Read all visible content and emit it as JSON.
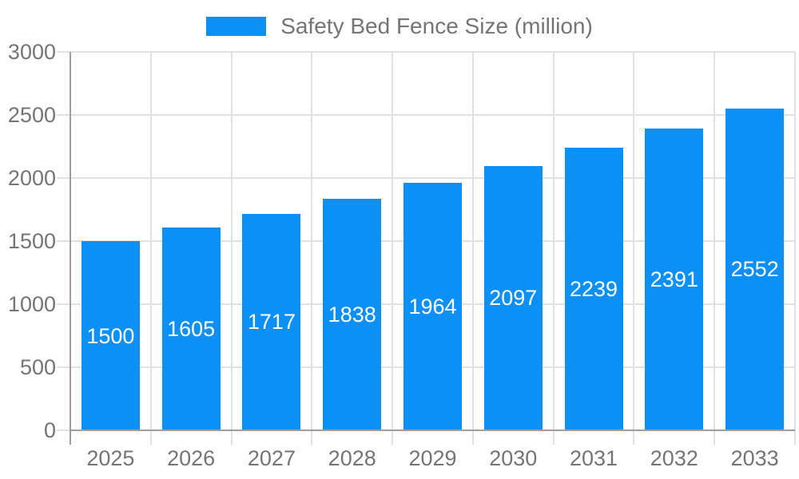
{
  "chart_data": {
    "type": "bar",
    "title": "Safety Bed Fence Size (million)",
    "legend_position": "top-center",
    "categories": [
      "2025",
      "2026",
      "2027",
      "2028",
      "2029",
      "2030",
      "2031",
      "2032",
      "2033"
    ],
    "series": [
      {
        "name": "Safety Bed Fence Size (million)",
        "values": [
          1500,
          1605,
          1717,
          1838,
          1964,
          2097,
          2239,
          2391,
          2552
        ]
      }
    ],
    "value_labels_shown": true,
    "value_label_position": "inside-center",
    "xlabel": "",
    "ylabel": "",
    "ylim": [
      0,
      3000
    ],
    "yticks": [
      0,
      500,
      1000,
      1500,
      2000,
      2500,
      3000
    ],
    "grid": true,
    "colors": {
      "bar": "#0d90f5",
      "grid_line": "#e1e1e1",
      "axis_line": "#9e9e9e",
      "axis_text": "#757575",
      "value_label_text": "#ffffff",
      "background": "#ffffff"
    }
  }
}
